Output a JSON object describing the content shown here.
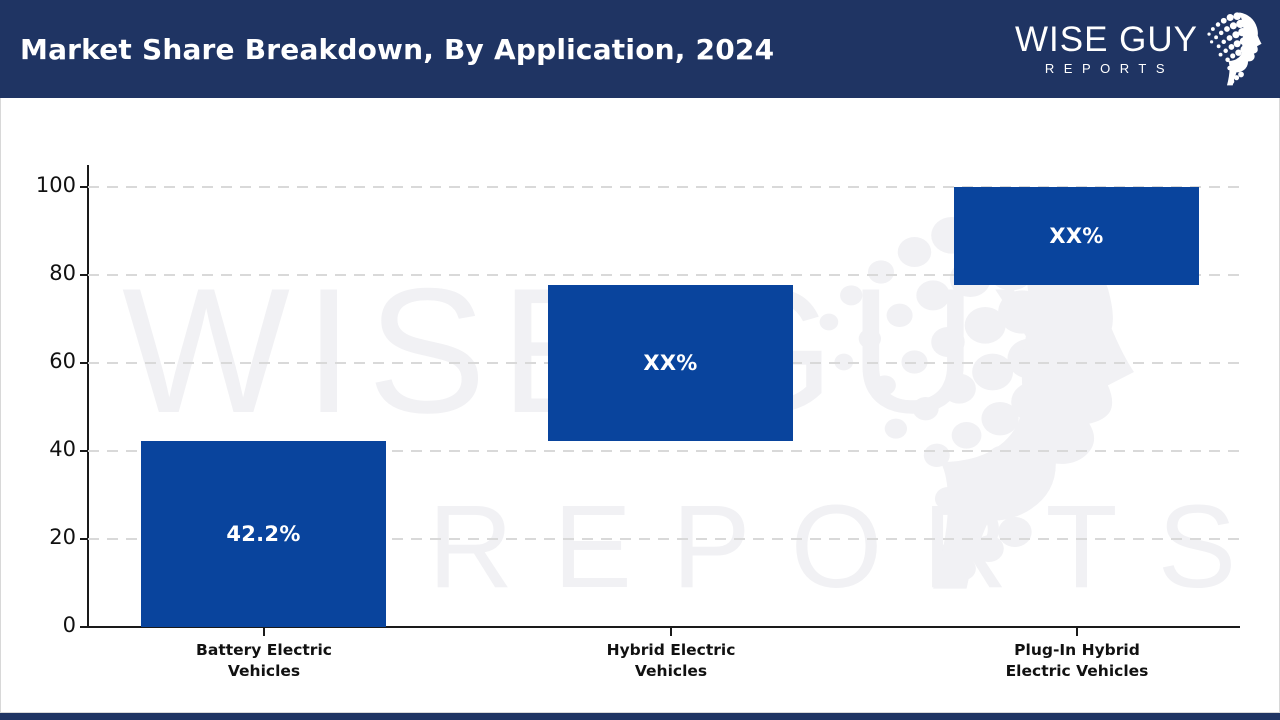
{
  "header": {
    "title": "Market Share Breakdown, By Application, 2024",
    "logo": {
      "wordmark": "WISE GUY",
      "subtext": "REPORTS",
      "icon": "wiseguy-dotted-head-icon"
    }
  },
  "watermark": {
    "wordmark": "WISE GUY",
    "subtext": "REPORTS",
    "icon": "wiseguy-dotted-head-icon"
  },
  "chart_data": {
    "type": "bar",
    "subtype": "floating-stacked-waterfall",
    "title": "Market Share Breakdown, By Application, 2024",
    "categories": [
      [
        "Battery Electric",
        "Vehicles"
      ],
      [
        "Hybrid Electric",
        "Vehicles"
      ],
      [
        "Plug-In Hybrid",
        "Electric Vehicles"
      ]
    ],
    "segments": [
      {
        "category": "Battery Electric Vehicles",
        "start": 0,
        "end": 42.2,
        "label": "42.2%"
      },
      {
        "category": "Hybrid Electric Vehicles",
        "start": 42.2,
        "end": 77.7,
        "label": "XX%"
      },
      {
        "category": "Plug-In Hybrid Electric Vehicles",
        "start": 77.7,
        "end": 100,
        "label": "XX%"
      }
    ],
    "ylim": [
      0,
      100
    ],
    "yticks": [
      0,
      20,
      40,
      60,
      80,
      100
    ],
    "xlabel": "",
    "ylabel": "",
    "grid": "horizontal-dashed",
    "legend": "none",
    "bar_color": "#09449d",
    "value_label_color": "#ffffff"
  },
  "colors": {
    "header_bg": "#1f3463",
    "footer_bg": "#1f3463",
    "bar": "#09449d",
    "grid": "#d9d9d9",
    "axis": "#1a1a1a",
    "watermark": "#f1f1f4"
  }
}
